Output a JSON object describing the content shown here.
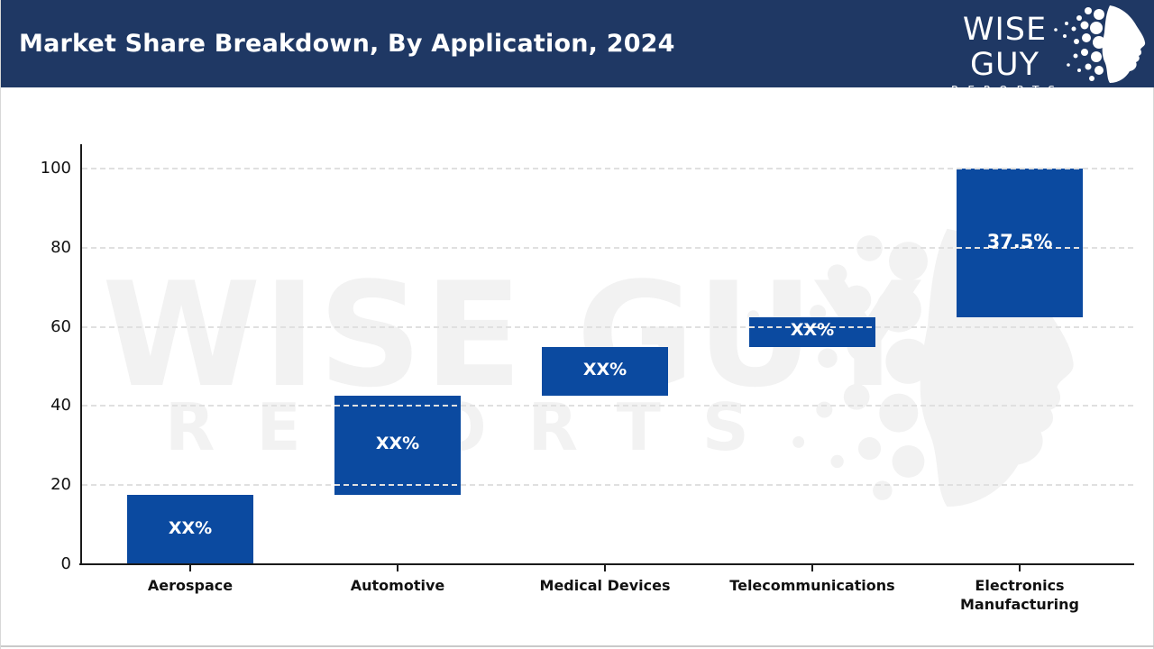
{
  "header": {
    "title": "Market Share Breakdown, By Application, 2024",
    "logo": {
      "brand_line1": "WISE GUY",
      "brand_line2": "REPORTS"
    }
  },
  "watermark": {
    "line1": "WISE GUY",
    "line2": "REPORTS"
  },
  "chart_data": {
    "type": "bar",
    "subtype": "waterfall-floating-bars",
    "title": "Market Share Breakdown, By Application, 2024",
    "categories": [
      "Aerospace",
      "Automotive",
      "Medical Devices",
      "Telecommunications",
      "Electronics Manufacturing"
    ],
    "segments": [
      {
        "category": "Aerospace",
        "start": 0,
        "end": 17.5,
        "value": 17.5,
        "label": "XX%"
      },
      {
        "category": "Automotive",
        "start": 17.5,
        "end": 42.5,
        "value": 25,
        "label": "XX%"
      },
      {
        "category": "Medical Devices",
        "start": 42.5,
        "end": 55,
        "value": 12.5,
        "label": "XX%"
      },
      {
        "category": "Telecommunications",
        "start": 55,
        "end": 62.5,
        "value": 7.5,
        "label": "XX%"
      },
      {
        "category": "Electronics Manufacturing",
        "start": 62.5,
        "end": 100,
        "value": 37.5,
        "label": "37.5%"
      }
    ],
    "yticks": [
      0,
      20,
      40,
      60,
      80,
      100
    ],
    "ylim": [
      0,
      106
    ],
    "grid": "horizontal dashed, drawn over bars",
    "legend": "none",
    "bar_color": "#0b4aa0",
    "label_color": "#ffffff"
  },
  "colors": {
    "header_bg": "#1f3864",
    "bar": "#0b4aa0",
    "axis": "#1a1a1a",
    "grid": "#e0e0e0",
    "watermark": "#f2f2f2",
    "bottom_border": "#c9c9c9"
  }
}
